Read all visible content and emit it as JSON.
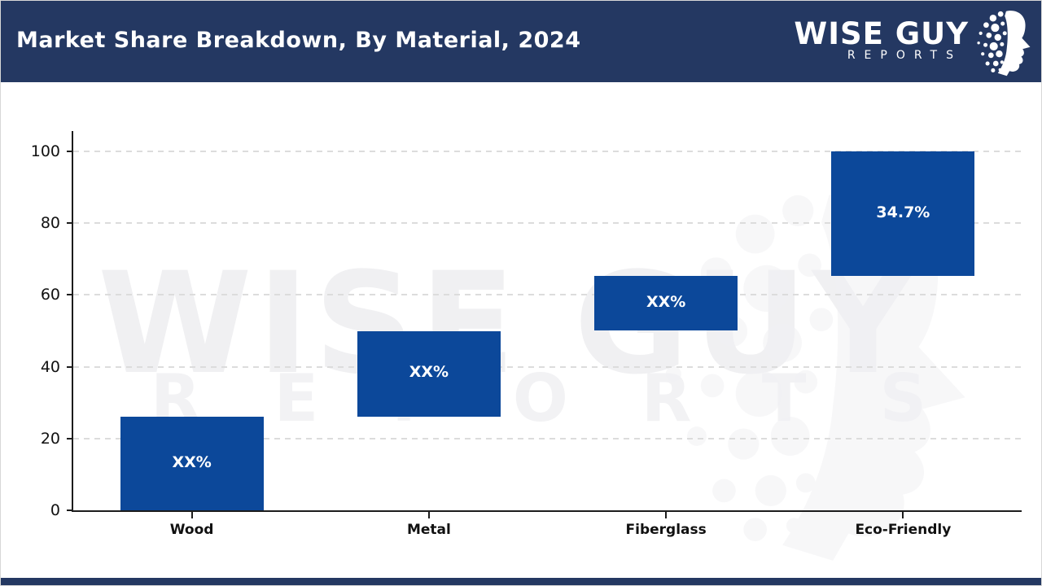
{
  "header": {
    "title": "Market Share Breakdown, By Material, 2024"
  },
  "logo": {
    "line1": "WISE GUY",
    "line2": "REPORTS"
  },
  "watermark": {
    "line1": "WISE GUY",
    "line2": "REPORTS"
  },
  "colors": {
    "header_bg": "#243862",
    "footer_bg": "#243862",
    "bar": "#0c489a",
    "bar_label": "#ffffff",
    "gridline": "#dcdcdc",
    "axis": "#1c1c1c",
    "watermark": "#f0f0f2"
  },
  "chart_data": {
    "type": "bar",
    "subtype": "floating-waterfall",
    "title": "Market Share Breakdown, By Material, 2024",
    "categories": [
      "Wood",
      "Metal",
      "Fiberglass",
      "Eco-Friendly"
    ],
    "bars": [
      {
        "category": "Wood",
        "start": 0,
        "end": 26,
        "label": "XX%"
      },
      {
        "category": "Metal",
        "start": 26,
        "end": 50,
        "label": "XX%"
      },
      {
        "category": "Fiberglass",
        "start": 50,
        "end": 65.3,
        "label": "XX%"
      },
      {
        "category": "Eco-Friendly",
        "start": 65.3,
        "end": 100,
        "label": "34.7%"
      }
    ],
    "xlabel": "",
    "ylabel": "",
    "ylim": [
      0,
      100
    ],
    "yticks": [
      0,
      20,
      40,
      60,
      80,
      100
    ],
    "grid": "horizontal-dashed",
    "legend": "none"
  }
}
